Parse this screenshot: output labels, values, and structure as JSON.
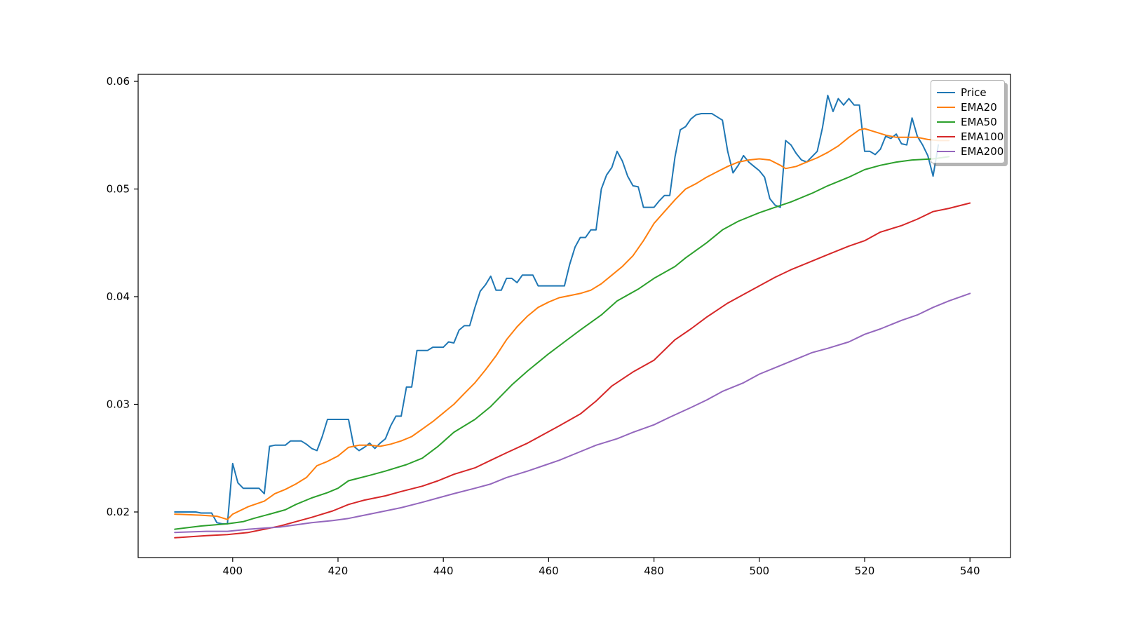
{
  "figure": {
    "background_color": "#ffffff",
    "plot_border_color": "#000000"
  },
  "legend": {
    "position": "upper right",
    "entries": [
      "Price",
      "EMA20",
      "EMA50",
      "EMA100",
      "EMA200"
    ]
  },
  "chart_data": {
    "type": "line",
    "title": "",
    "xlabel": "",
    "ylabel": "",
    "grid": false,
    "legend_position": "upper right",
    "xlim": [
      381.6,
      547.7
    ],
    "ylim": [
      0.0158,
      0.0607
    ],
    "x_ticks": [
      400,
      420,
      440,
      460,
      480,
      500,
      520,
      540
    ],
    "y_ticks": [
      0.02,
      0.03,
      0.04,
      0.05,
      0.06
    ],
    "x_tick_labels": [
      "400",
      "420",
      "440",
      "460",
      "480",
      "500",
      "520",
      "540"
    ],
    "y_tick_labels": [
      "0.02",
      "0.03",
      "0.04",
      "0.05",
      "0.06"
    ],
    "value_scale": 0.0001,
    "series": [
      {
        "name": "Price",
        "color": "#1f77b4",
        "x_start": 389,
        "x_step": 1,
        "values": [
          200,
          200,
          200,
          200,
          200,
          199,
          199,
          199,
          190,
          189,
          189,
          245,
          227,
          222,
          222,
          222,
          222,
          217,
          261,
          262,
          262,
          262,
          266,
          266,
          266,
          263,
          259,
          257,
          270,
          286,
          286,
          286,
          286,
          286,
          261,
          257,
          260,
          264,
          259,
          264,
          268,
          280,
          289,
          289,
          316,
          316,
          350,
          350,
          350,
          353,
          353,
          353,
          358,
          357,
          369,
          373,
          373,
          390,
          405,
          411,
          419,
          406,
          406,
          417,
          417,
          413,
          420,
          420,
          420,
          410,
          410,
          410,
          410,
          410,
          410,
          430,
          446,
          455,
          455,
          462,
          462,
          500,
          513,
          520,
          535,
          526,
          512,
          503,
          502,
          483,
          483,
          483,
          489,
          494,
          494,
          530,
          555,
          558,
          565,
          569,
          570,
          570,
          570,
          567,
          564,
          535,
          515,
          522,
          531,
          525,
          521,
          517,
          511,
          491,
          485,
          483,
          545,
          541,
          533,
          527,
          525,
          530,
          535,
          557,
          587,
          572,
          584,
          578,
          584,
          578,
          578,
          535,
          535,
          532,
          537,
          549,
          547,
          551,
          542,
          541,
          566,
          549,
          541,
          531,
          512,
          541
        ]
      },
      {
        "name": "EMA20",
        "color": "#ff7f0e",
        "points": [
          [
            389,
            198
          ],
          [
            394,
            197
          ],
          [
            397,
            196
          ],
          [
            399,
            193
          ],
          [
            400,
            198
          ],
          [
            403,
            205
          ],
          [
            406,
            210
          ],
          [
            408,
            217
          ],
          [
            410,
            221
          ],
          [
            412,
            226
          ],
          [
            414,
            232
          ],
          [
            416,
            243
          ],
          [
            418,
            247
          ],
          [
            420,
            252
          ],
          [
            422,
            260
          ],
          [
            424,
            262
          ],
          [
            426,
            262
          ],
          [
            428,
            261
          ],
          [
            430,
            263
          ],
          [
            432,
            266
          ],
          [
            434,
            270
          ],
          [
            436,
            277
          ],
          [
            438,
            284
          ],
          [
            440,
            292
          ],
          [
            442,
            300
          ],
          [
            444,
            310
          ],
          [
            446,
            320
          ],
          [
            448,
            332
          ],
          [
            450,
            345
          ],
          [
            452,
            360
          ],
          [
            454,
            372
          ],
          [
            456,
            382
          ],
          [
            458,
            390
          ],
          [
            460,
            395
          ],
          [
            462,
            399
          ],
          [
            464,
            401
          ],
          [
            466,
            403
          ],
          [
            468,
            406
          ],
          [
            470,
            412
          ],
          [
            472,
            420
          ],
          [
            474,
            428
          ],
          [
            476,
            438
          ],
          [
            478,
            452
          ],
          [
            480,
            468
          ],
          [
            482,
            479
          ],
          [
            484,
            490
          ],
          [
            486,
            500
          ],
          [
            488,
            505
          ],
          [
            490,
            511
          ],
          [
            492,
            516
          ],
          [
            494,
            521
          ],
          [
            496,
            525
          ],
          [
            498,
            527
          ],
          [
            500,
            528
          ],
          [
            502,
            527
          ],
          [
            504,
            522
          ],
          [
            505,
            519
          ],
          [
            507,
            521
          ],
          [
            509,
            525
          ],
          [
            511,
            529
          ],
          [
            513,
            534
          ],
          [
            515,
            540
          ],
          [
            517,
            548
          ],
          [
            519,
            555
          ],
          [
            520,
            556
          ],
          [
            522,
            553
          ],
          [
            524,
            550
          ],
          [
            526,
            548
          ],
          [
            528,
            548
          ],
          [
            530,
            548
          ],
          [
            532,
            546
          ],
          [
            534,
            545
          ],
          [
            536,
            545
          ]
        ]
      },
      {
        "name": "EMA50",
        "color": "#2ca02c",
        "points": [
          [
            389,
            184
          ],
          [
            394,
            187
          ],
          [
            399,
            189
          ],
          [
            402,
            191
          ],
          [
            404,
            194
          ],
          [
            407,
            198
          ],
          [
            410,
            202
          ],
          [
            412,
            207
          ],
          [
            415,
            213
          ],
          [
            418,
            218
          ],
          [
            420,
            222
          ],
          [
            422,
            229
          ],
          [
            426,
            234
          ],
          [
            429,
            238
          ],
          [
            433,
            244
          ],
          [
            436,
            250
          ],
          [
            439,
            261
          ],
          [
            442,
            274
          ],
          [
            446,
            286
          ],
          [
            449,
            298
          ],
          [
            453,
            318
          ],
          [
            456,
            331
          ],
          [
            460,
            347
          ],
          [
            463,
            358
          ],
          [
            466,
            369
          ],
          [
            470,
            383
          ],
          [
            473,
            396
          ],
          [
            477,
            407
          ],
          [
            480,
            417
          ],
          [
            484,
            428
          ],
          [
            486,
            436
          ],
          [
            490,
            450
          ],
          [
            493,
            462
          ],
          [
            496,
            470
          ],
          [
            500,
            478
          ],
          [
            503,
            483
          ],
          [
            506,
            488
          ],
          [
            510,
            496
          ],
          [
            513,
            503
          ],
          [
            517,
            511
          ],
          [
            520,
            518
          ],
          [
            523,
            522
          ],
          [
            526,
            525
          ],
          [
            529,
            527
          ],
          [
            533,
            528
          ],
          [
            536,
            530
          ]
        ]
      },
      {
        "name": "EMA100",
        "color": "#d62728",
        "points": [
          [
            389,
            176
          ],
          [
            395,
            178
          ],
          [
            399,
            179
          ],
          [
            403,
            181
          ],
          [
            406,
            184
          ],
          [
            409,
            187
          ],
          [
            412,
            191
          ],
          [
            415,
            195
          ],
          [
            419,
            201
          ],
          [
            422,
            207
          ],
          [
            425,
            211
          ],
          [
            429,
            215
          ],
          [
            432,
            219
          ],
          [
            436,
            224
          ],
          [
            439,
            229
          ],
          [
            442,
            235
          ],
          [
            446,
            241
          ],
          [
            449,
            248
          ],
          [
            452,
            255
          ],
          [
            456,
            264
          ],
          [
            459,
            272
          ],
          [
            462,
            280
          ],
          [
            466,
            291
          ],
          [
            469,
            303
          ],
          [
            472,
            317
          ],
          [
            476,
            330
          ],
          [
            480,
            341
          ],
          [
            484,
            360
          ],
          [
            487,
            370
          ],
          [
            490,
            381
          ],
          [
            494,
            394
          ],
          [
            497,
            402
          ],
          [
            500,
            410
          ],
          [
            503,
            418
          ],
          [
            506,
            425
          ],
          [
            510,
            433
          ],
          [
            513,
            439
          ],
          [
            517,
            447
          ],
          [
            520,
            452
          ],
          [
            523,
            460
          ],
          [
            527,
            466
          ],
          [
            530,
            472
          ],
          [
            533,
            479
          ],
          [
            536,
            482
          ],
          [
            540,
            487
          ]
        ]
      },
      {
        "name": "EMA200",
        "color": "#9467bd",
        "points": [
          [
            389,
            181
          ],
          [
            395,
            182
          ],
          [
            399,
            182
          ],
          [
            403,
            184
          ],
          [
            406,
            185
          ],
          [
            409,
            186
          ],
          [
            412,
            188
          ],
          [
            415,
            190
          ],
          [
            419,
            192
          ],
          [
            422,
            194
          ],
          [
            425,
            197
          ],
          [
            429,
            201
          ],
          [
            432,
            204
          ],
          [
            436,
            209
          ],
          [
            439,
            213
          ],
          [
            442,
            217
          ],
          [
            446,
            222
          ],
          [
            449,
            226
          ],
          [
            452,
            232
          ],
          [
            456,
            238
          ],
          [
            459,
            243
          ],
          [
            462,
            248
          ],
          [
            466,
            256
          ],
          [
            469,
            262
          ],
          [
            473,
            268
          ],
          [
            476,
            274
          ],
          [
            480,
            281
          ],
          [
            483,
            288
          ],
          [
            487,
            297
          ],
          [
            490,
            304
          ],
          [
            493,
            312
          ],
          [
            497,
            320
          ],
          [
            500,
            328
          ],
          [
            503,
            334
          ],
          [
            506,
            340
          ],
          [
            510,
            348
          ],
          [
            513,
            352
          ],
          [
            517,
            358
          ],
          [
            520,
            365
          ],
          [
            523,
            370
          ],
          [
            527,
            378
          ],
          [
            530,
            383
          ],
          [
            533,
            390
          ],
          [
            536,
            396
          ],
          [
            540,
            403
          ]
        ]
      }
    ]
  }
}
